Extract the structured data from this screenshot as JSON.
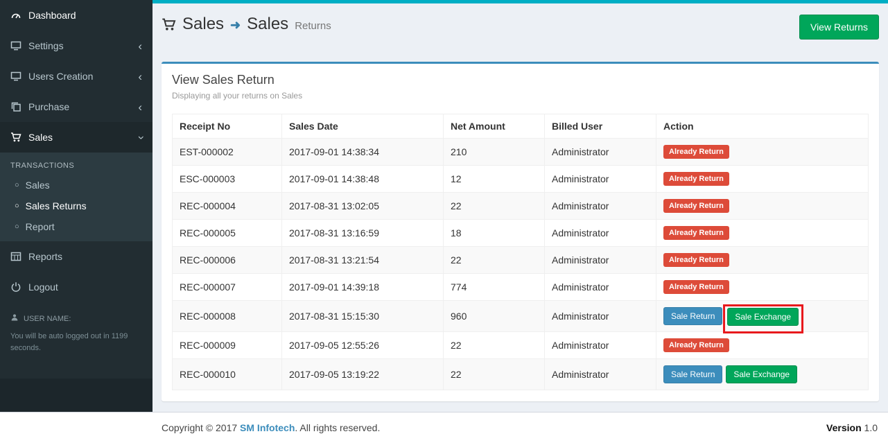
{
  "icons": {
    "chevron_left": "‹",
    "circle": "○",
    "arrow_right": "➜"
  },
  "colors": {
    "accent": "#3c8dbc",
    "success": "#00a65a",
    "danger": "#dd4b39",
    "top_strip": "#00aec4",
    "sidebar_bg": "#222d32",
    "highlight": "#e8191d"
  },
  "sidebar": {
    "items": [
      {
        "label": "Dashboard"
      },
      {
        "label": "Settings"
      },
      {
        "label": "Users Creation"
      },
      {
        "label": "Purchase"
      },
      {
        "label": "Sales"
      }
    ],
    "section_header": "TRANSACTIONS",
    "sub_items": [
      {
        "label": "Sales"
      },
      {
        "label": "Sales Returns"
      },
      {
        "label": "Report"
      }
    ],
    "bottom_items": [
      {
        "label": "Reports"
      },
      {
        "label": "Logout"
      }
    ],
    "user_label": "USER NAME:",
    "logout_notice": "You will be auto logged out in 1199 seconds."
  },
  "header": {
    "title_primary": "Sales",
    "title_secondary": "Sales",
    "title_sub": "Returns",
    "view_returns_button": "View Returns"
  },
  "card": {
    "title": "View Sales Return",
    "subtitle": "Displaying all your returns on Sales"
  },
  "labels": {
    "already_return": "Already Return",
    "sale_return": "Sale Return",
    "sale_exchange": "Sale Exchange"
  },
  "table": {
    "columns": [
      "Receipt No",
      "Sales Date",
      "Net Amount",
      "Billed User",
      "Action"
    ],
    "rows": [
      {
        "receipt": "EST-000002",
        "date": "2017-09-01 14:38:34",
        "amount": "210",
        "user": "Administrator",
        "actions": [
          "already_return"
        ]
      },
      {
        "receipt": "ESC-000003",
        "date": "2017-09-01 14:38:48",
        "amount": "12",
        "user": "Administrator",
        "actions": [
          "already_return"
        ]
      },
      {
        "receipt": "REC-000004",
        "date": "2017-08-31 13:02:05",
        "amount": "22",
        "user": "Administrator",
        "actions": [
          "already_return"
        ]
      },
      {
        "receipt": "REC-000005",
        "date": "2017-08-31 13:16:59",
        "amount": "18",
        "user": "Administrator",
        "actions": [
          "already_return"
        ]
      },
      {
        "receipt": "REC-000006",
        "date": "2017-08-31 13:21:54",
        "amount": "22",
        "user": "Administrator",
        "actions": [
          "already_return"
        ]
      },
      {
        "receipt": "REC-000007",
        "date": "2017-09-01 14:39:18",
        "amount": "774",
        "user": "Administrator",
        "actions": [
          "already_return"
        ]
      },
      {
        "receipt": "REC-000008",
        "date": "2017-08-31 15:15:30",
        "amount": "960",
        "user": "Administrator",
        "actions": [
          "sale_return",
          "sale_exchange"
        ],
        "highlight": "sale_exchange"
      },
      {
        "receipt": "REC-000009",
        "date": "2017-09-05 12:55:26",
        "amount": "22",
        "user": "Administrator",
        "actions": [
          "already_return"
        ]
      },
      {
        "receipt": "REC-000010",
        "date": "2017-09-05 13:19:22",
        "amount": "22",
        "user": "Administrator",
        "actions": [
          "sale_return",
          "sale_exchange"
        ]
      }
    ]
  },
  "footer": {
    "copyright_prefix": "Copyright © 2017",
    "company": "SM Infotech",
    "copyright_suffix": ". All rights reserved.",
    "version_label": "Version",
    "version_value": "1.0"
  }
}
